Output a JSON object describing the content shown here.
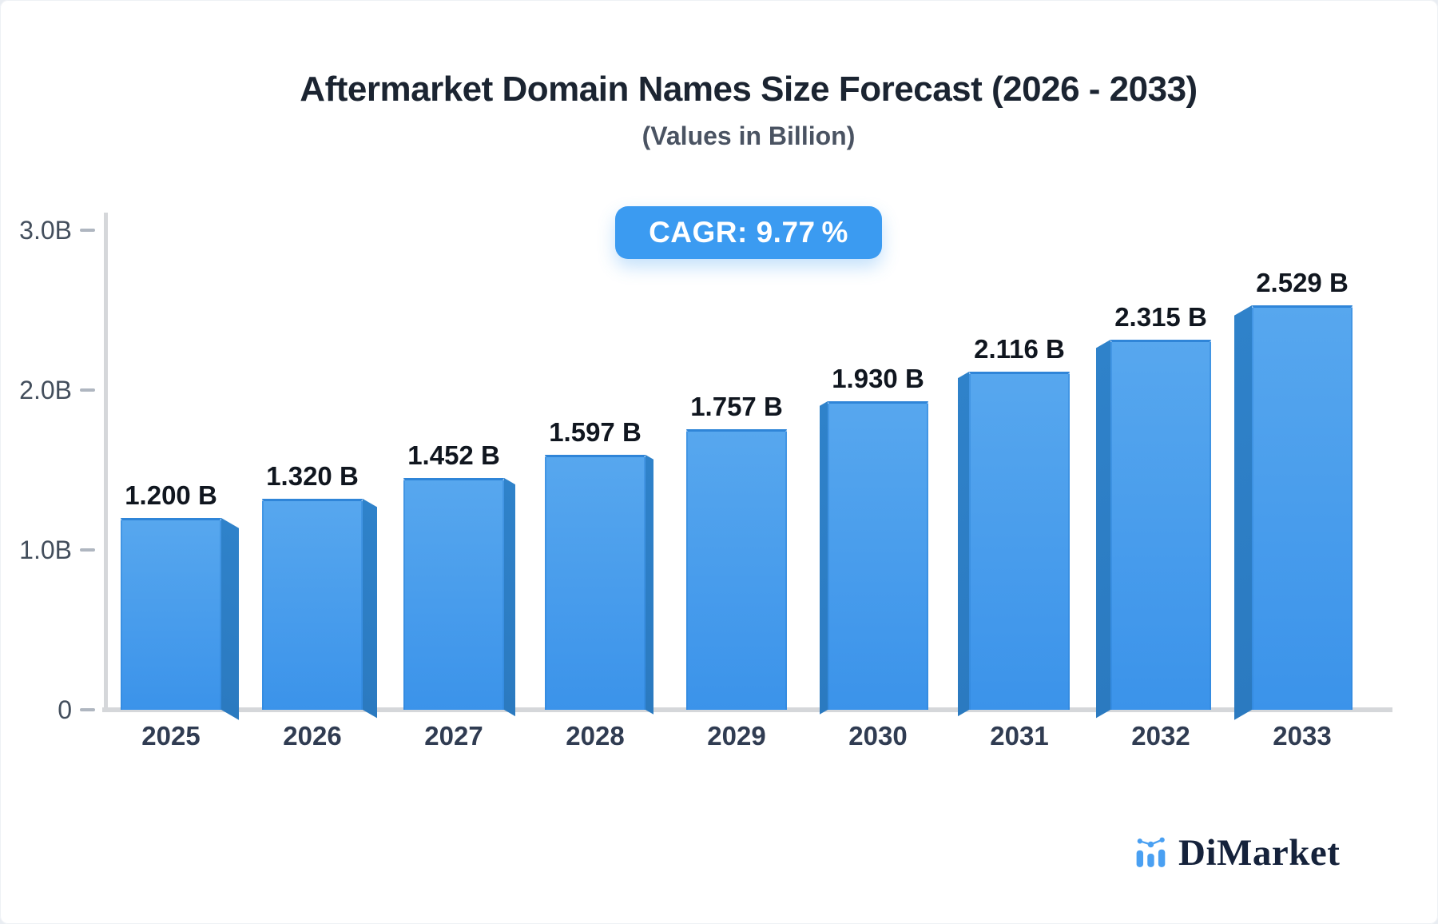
{
  "page": {
    "background": "#e9edf2",
    "card_background": "#ffffff"
  },
  "header": {
    "title": "Aftermarket Domain Names Size Forecast (2026 - 2033)",
    "subtitle": "(Values in Billion)",
    "cagr_badge": "CAGR: 9.77 %"
  },
  "chart_data": {
    "type": "bar",
    "title": "Aftermarket Domain Names Size Forecast (2026 - 2033)",
    "subtitle": "(Values in Billion)",
    "unit": "Billion",
    "cagr_percent": 9.77,
    "categories": [
      "2025",
      "2026",
      "2027",
      "2028",
      "2029",
      "2030",
      "2031",
      "2032",
      "2033"
    ],
    "values": [
      1.2,
      1.32,
      1.452,
      1.597,
      1.757,
      1.93,
      2.116,
      2.315,
      2.529
    ],
    "value_labels": [
      "1.200 B",
      "1.320 B",
      "1.452 B",
      "1.597 B",
      "1.757 B",
      "1.930 B",
      "2.116 B",
      "2.315 B",
      "2.529 B"
    ],
    "xlabel": "",
    "ylabel": "",
    "ylim": [
      0,
      3.0
    ],
    "yticks": [
      {
        "value": 0,
        "label": "0"
      },
      {
        "value": 1,
        "label": "1.0B"
      },
      {
        "value": 2,
        "label": "2.0B"
      },
      {
        "value": 3,
        "label": "3.0B"
      }
    ],
    "grid": false,
    "legend": false,
    "bar_style": "3d-perspective-to-center",
    "colors": {
      "front_top": "#57a7ee",
      "front_bottom": "#3b93ea",
      "top_edge": "#2f85d8",
      "side": "#2f82ca",
      "side_dark": "#2b7ac0",
      "axis": "#d5d7da",
      "tick_dash": "#afb6c0",
      "tick_text": "#434e5c",
      "category_text": "#303c52",
      "value_text": "#10161f",
      "badge_bg": "#3b9bf1",
      "badge_text": "#ffffff"
    }
  },
  "theme": {
    "title_text": "#1b2431",
    "subtitle_text": "#4a5362",
    "logo_text": "#15223b",
    "logo_icon": "#4aa0f2"
  },
  "logo": {
    "text": "DiMarket",
    "icon": "mini-bar-chart-logo-icon"
  }
}
